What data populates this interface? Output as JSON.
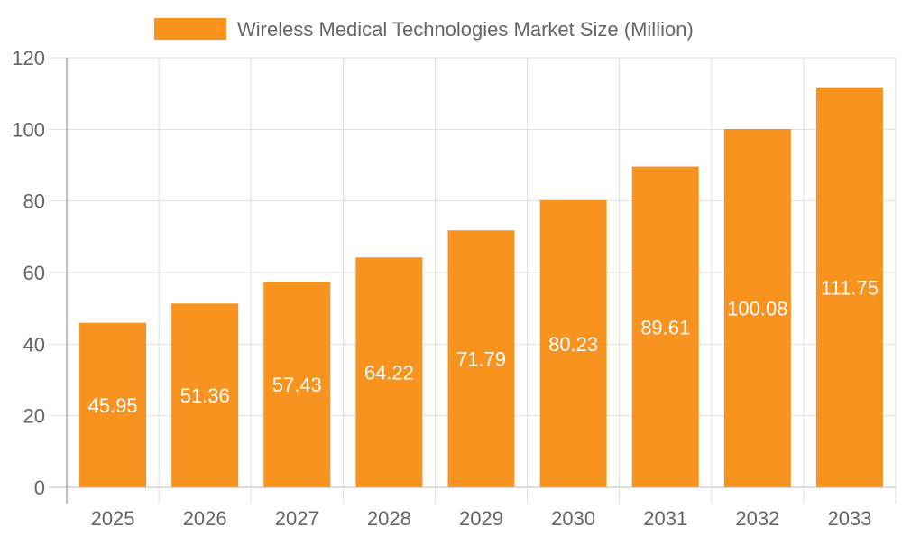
{
  "chart_data": {
    "type": "bar",
    "categories": [
      "2025",
      "2026",
      "2027",
      "2028",
      "2029",
      "2030",
      "2031",
      "2032",
      "2033"
    ],
    "series": [
      {
        "name": "Wireless Medical Technologies Market Size (Million)",
        "values": [
          45.95,
          51.36,
          57.43,
          64.22,
          71.79,
          80.23,
          89.61,
          100.08,
          111.75
        ],
        "color": "#f7931e"
      }
    ],
    "data_labels": [
      "45.95",
      "51.36",
      "57.43",
      "64.22",
      "71.79",
      "80.23",
      "89.61",
      "100.08",
      "111.75"
    ],
    "ylim": [
      0,
      120
    ],
    "yticks": [
      "0",
      "20",
      "40",
      "60",
      "80",
      "100",
      "120"
    ],
    "grid": true,
    "legend_position": "top"
  }
}
